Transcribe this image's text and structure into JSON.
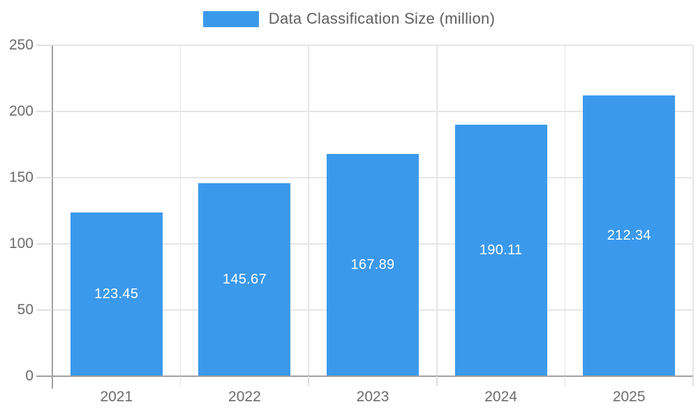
{
  "legend": {
    "label": "Data Classification Size (million)",
    "swatch_color": "#3B99EC"
  },
  "chart_data": {
    "type": "bar",
    "title": "",
    "xlabel": "",
    "ylabel": "",
    "categories": [
      "2021",
      "2022",
      "2023",
      "2024",
      "2025"
    ],
    "values": [
      123.45,
      145.67,
      167.89,
      190.11,
      212.34
    ],
    "value_labels": [
      "123.45",
      "145.67",
      "167.89",
      "190.11",
      "212.34"
    ],
    "series_name": "Data Classification Size (million)",
    "ylim": [
      0,
      250
    ],
    "yticks": [
      0,
      50,
      100,
      150,
      200,
      250
    ],
    "grid": true,
    "legend_position": "top",
    "bar_color": "#3B99EC",
    "value_label_color": "#ffffff",
    "axis_color": "#a0a0a0",
    "grid_color": "#e6e6e6",
    "tick_label_color": "#6b6b6b"
  }
}
